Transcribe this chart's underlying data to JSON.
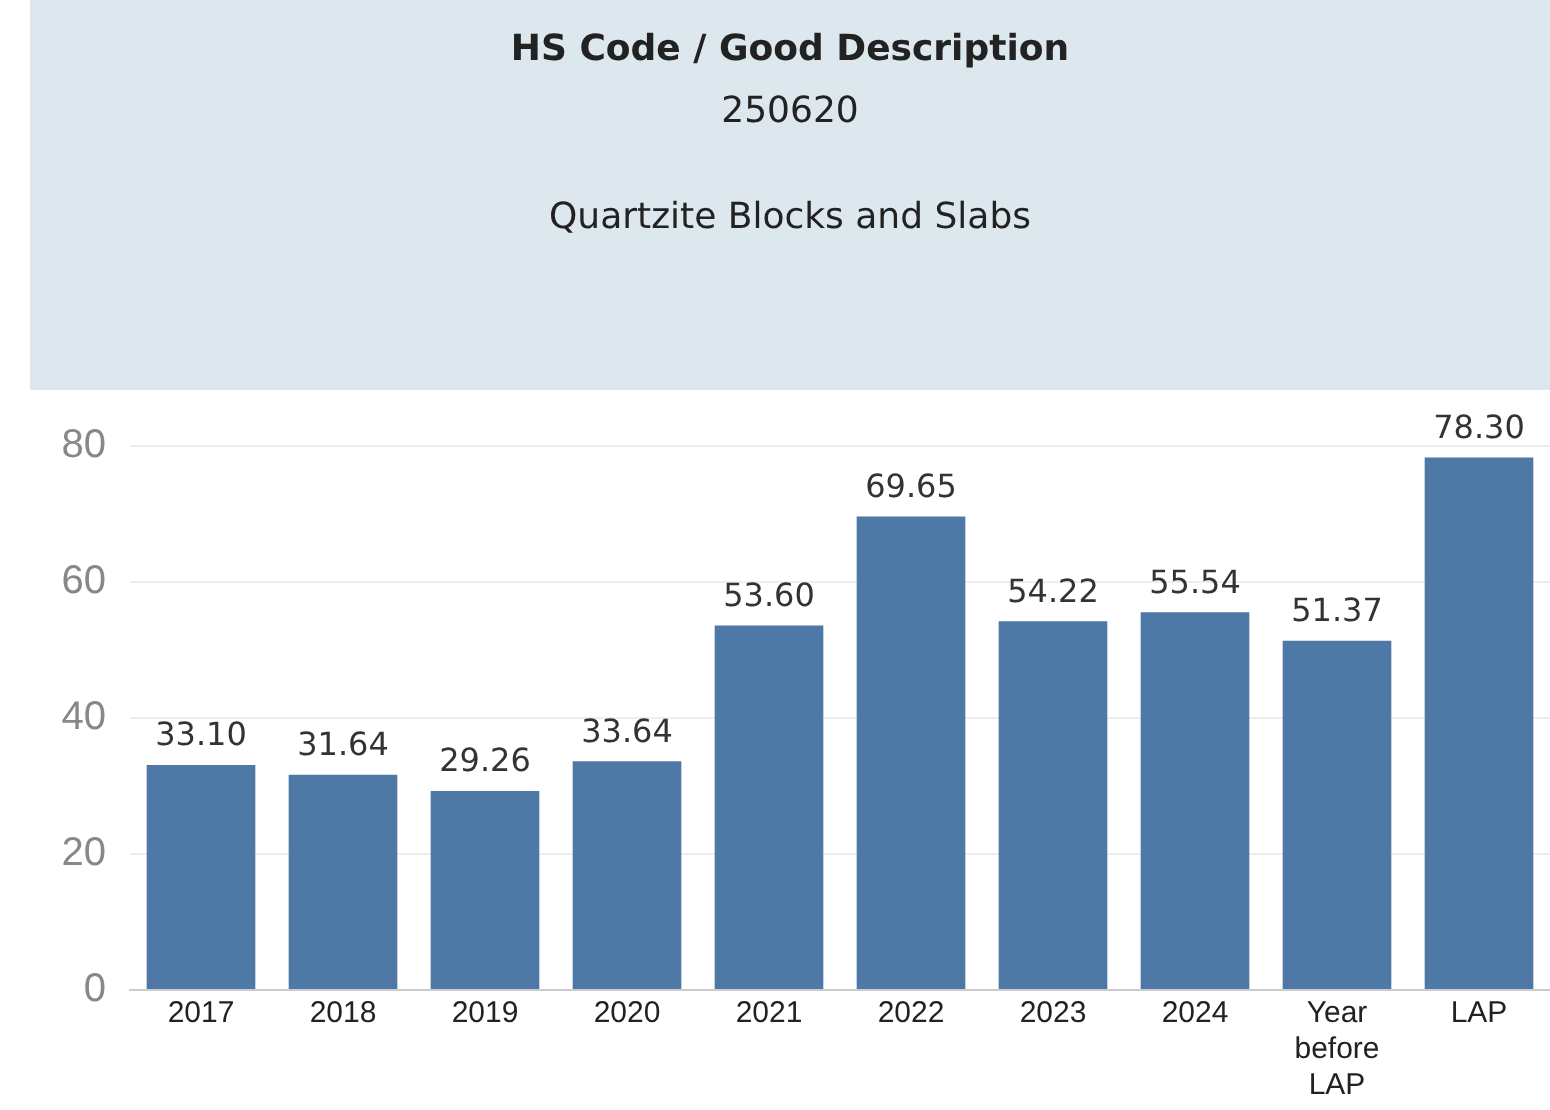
{
  "chart_data": {
    "type": "bar",
    "title": "HS Code / Good Description",
    "subtitle": "250620",
    "annotations": [
      "Quartzite Blocks and Slabs"
    ],
    "categories": [
      "2017",
      "2018",
      "2019",
      "2020",
      "2021",
      "2022",
      "2023",
      "2024",
      "Year before LAP",
      "LAP"
    ],
    "values": [
      33.1,
      31.64,
      29.26,
      33.64,
      53.6,
      69.65,
      54.22,
      55.54,
      51.37,
      78.3
    ],
    "value_labels": [
      "33.10",
      "31.64",
      "29.26",
      "33.64",
      "53.60",
      "69.65",
      "54.22",
      "55.54",
      "51.37",
      "78.30"
    ],
    "color": "#4e79a7",
    "ylim": [
      0,
      80
    ],
    "yticks": [
      0,
      20,
      40,
      60,
      80
    ],
    "grid": "y",
    "legend": false
  }
}
